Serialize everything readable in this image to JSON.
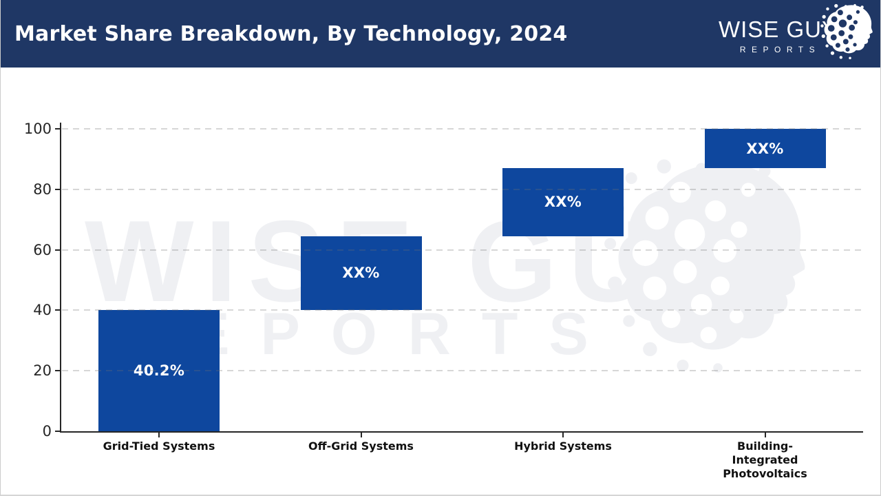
{
  "header": {
    "title": "Market Share Breakdown, By Technology, 2024",
    "logo": {
      "line1": "WISE GUY",
      "line2": "REPORTS"
    }
  },
  "watermark": {
    "line1": "WISE GUY",
    "line2": "REPORTS",
    "face_icon": "dotted-head-profile"
  },
  "colors": {
    "header_bg": "#1f3765",
    "bar": "#0e479e",
    "axis": "#262626",
    "grid": "#d9d9d9",
    "watermark": "#eff0f3",
    "title_text": "#ffffff",
    "bar_label_text": "#ffffff"
  },
  "chart_data": {
    "type": "bar",
    "subtype": "waterfall",
    "title": "Market Share Breakdown, By Technology, 2024",
    "xlabel": "",
    "ylabel": "",
    "ylim": [
      0,
      106
    ],
    "y_ticks": [
      0,
      20,
      40,
      60,
      80,
      100
    ],
    "grid": "horizontal-dashed",
    "legend": "none",
    "categories": [
      "Grid-Tied Systems",
      "Off-Grid Systems",
      "Hybrid Systems",
      "Building-Integrated Photovoltaics"
    ],
    "category_lines": [
      [
        "Grid-Tied Systems"
      ],
      [
        "Off-Grid Systems"
      ],
      [
        "Hybrid Systems"
      ],
      [
        "Building-",
        "Integrated",
        "Photovoltaics"
      ]
    ],
    "segments": [
      {
        "category": "Grid-Tied Systems",
        "start": 0,
        "end": 40.2,
        "value": 40.2,
        "value_label": "40.2%"
      },
      {
        "category": "Off-Grid Systems",
        "start": 40.2,
        "end": 64.5,
        "value": 24.3,
        "value_label": "XX%"
      },
      {
        "category": "Hybrid Systems",
        "start": 64.5,
        "end": 87.0,
        "value": 22.5,
        "value_label": "XX%"
      },
      {
        "category": "Building-Integrated Photovoltaics",
        "start": 87.0,
        "end": 100.0,
        "value": 13.0,
        "value_label": "XX%"
      }
    ]
  }
}
